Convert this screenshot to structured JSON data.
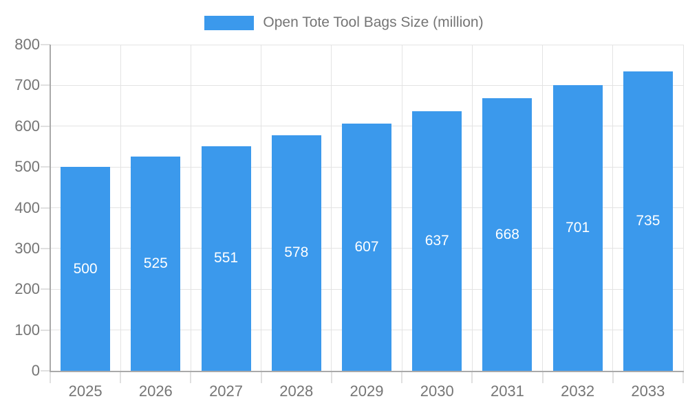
{
  "chart_data": {
    "type": "bar",
    "title": "Open Tote Tool Bags Size (million)",
    "series_name": "Open Tote Tool Bags Size (million)",
    "categories": [
      "2025",
      "2026",
      "2027",
      "2028",
      "2029",
      "2030",
      "2031",
      "2032",
      "2033"
    ],
    "values": [
      500,
      525,
      551,
      578,
      607,
      637,
      668,
      701,
      735
    ],
    "xlabel": "",
    "ylabel": "",
    "ylim": [
      0,
      800
    ],
    "ytick_interval": 100,
    "ytick_labels": [
      "0",
      "100",
      "200",
      "300",
      "400",
      "500",
      "600",
      "700",
      "800"
    ],
    "grid": true,
    "legend_position": "top-center",
    "data_labels_position": "inside-center",
    "colors": {
      "bar": "#3B99EC",
      "axis": "#A9A9A9",
      "grid": "#E3E3E3",
      "tick": "#E0E0E0",
      "axis_label": "#757575",
      "bar_label": "#FFFFFF",
      "background": "#FFFFFF"
    }
  }
}
